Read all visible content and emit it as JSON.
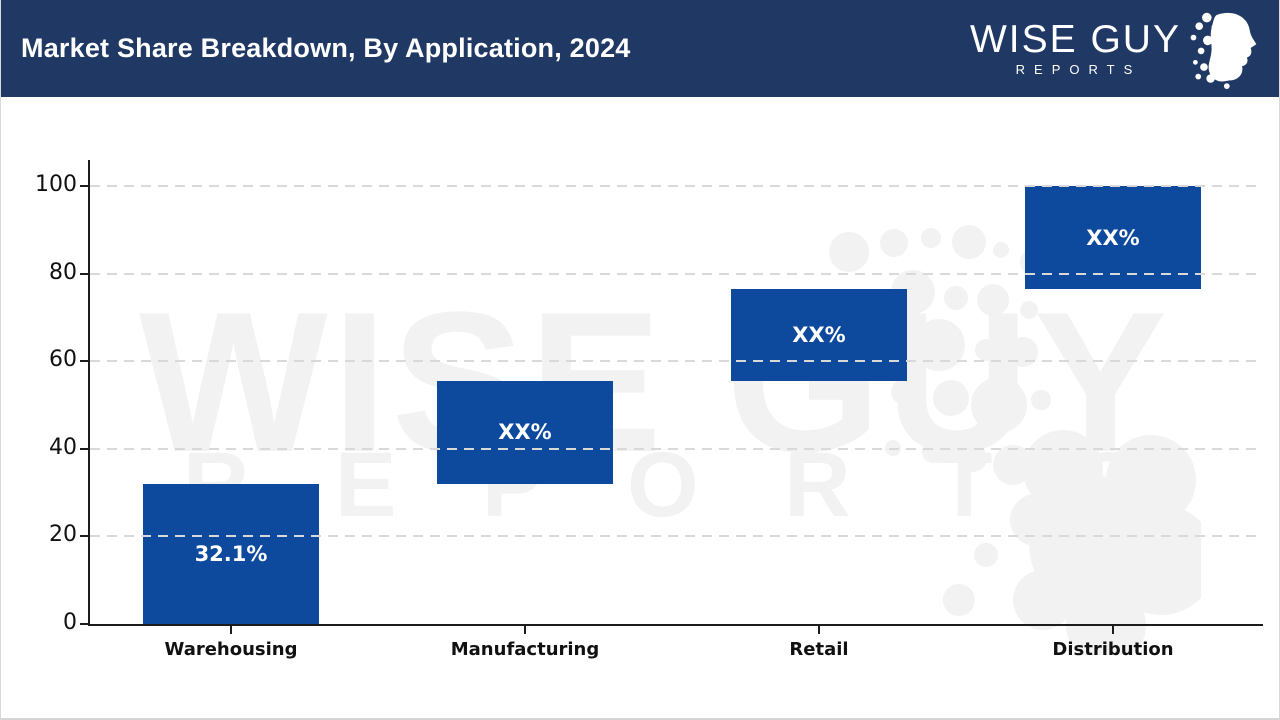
{
  "header": {
    "title": "Market Share Breakdown, By Application, 2024",
    "logo": {
      "line1": "WISE GUY",
      "line2": "REPORTS"
    }
  },
  "watermark": {
    "line1": "WISE GUY",
    "line2": "R E P O R T S"
  },
  "chart_data": {
    "type": "bar",
    "subtype": "waterfall",
    "title": "Market Share Breakdown, By Application, 2024",
    "categories": [
      "Warehousing",
      "Manufacturing",
      "Retail",
      "Distribution"
    ],
    "segments": [
      {
        "category": "Warehousing",
        "start": 0,
        "end": 32.1,
        "label": "32.1%"
      },
      {
        "category": "Manufacturing",
        "start": 32.1,
        "end": 55.5,
        "label": "XX%"
      },
      {
        "category": "Retail",
        "start": 55.5,
        "end": 76.5,
        "label": "XX%"
      },
      {
        "category": "Distribution",
        "start": 76.5,
        "end": 100,
        "label": "XX%"
      }
    ],
    "xlabel": "",
    "ylabel": "",
    "ylim": [
      0,
      100
    ],
    "yticks": [
      0,
      20,
      40,
      60,
      80,
      100
    ],
    "grid": "horizontal-dashed",
    "legend": "none",
    "bar_color": "#0d4a9e"
  },
  "colors": {
    "header_bg": "#203864",
    "bar": "#0d4a9e",
    "grid": "#d9d9d9",
    "axis": "#1c1c1c",
    "watermark": "#f2f2f2",
    "bar_label": "#ffffff",
    "title_text": "#ffffff"
  }
}
